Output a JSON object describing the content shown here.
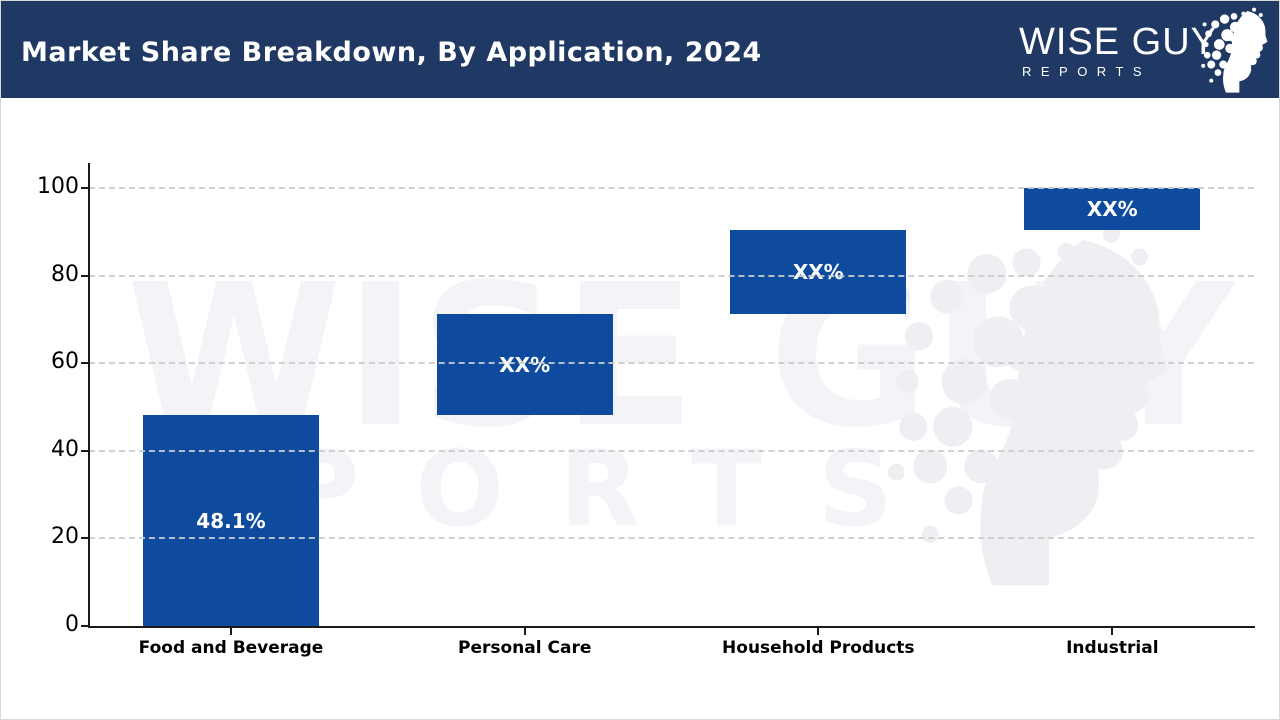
{
  "header": {
    "title": "Market Share Breakdown, By Application, 2024",
    "bg_color": "#203864",
    "logo": {
      "line1": "WISE GUY",
      "line2": "REPORTS"
    }
  },
  "watermark": {
    "line1": "WISE GUY",
    "line2": "PORTS"
  },
  "chart_data": {
    "type": "bar",
    "variant": "waterfall",
    "title": "Market Share Breakdown, By Application, 2024",
    "categories": [
      "Food and Beverage",
      "Personal Care",
      "Household Products",
      "Industrial"
    ],
    "segments": [
      {
        "category": "Food and Beverage",
        "start": 0,
        "end": 48.1,
        "label": "48.1%"
      },
      {
        "category": "Personal Care",
        "start": 48.1,
        "end": 71.2,
        "label": "XX%"
      },
      {
        "category": "Household Products",
        "start": 71.2,
        "end": 90.4,
        "label": "XX%"
      },
      {
        "category": "Industrial",
        "start": 90.4,
        "end": 100,
        "label": "XX%"
      }
    ],
    "yticks": [
      0,
      20,
      40,
      60,
      80,
      100
    ],
    "ylim": [
      0,
      106
    ],
    "xlabel": "",
    "ylabel": "",
    "bar_color": "#0e4a9e",
    "bar_label_color": "#ffffff",
    "grid": {
      "horizontal": true,
      "style": "dashed",
      "color": "#cbcbcb"
    },
    "legend": "none"
  }
}
